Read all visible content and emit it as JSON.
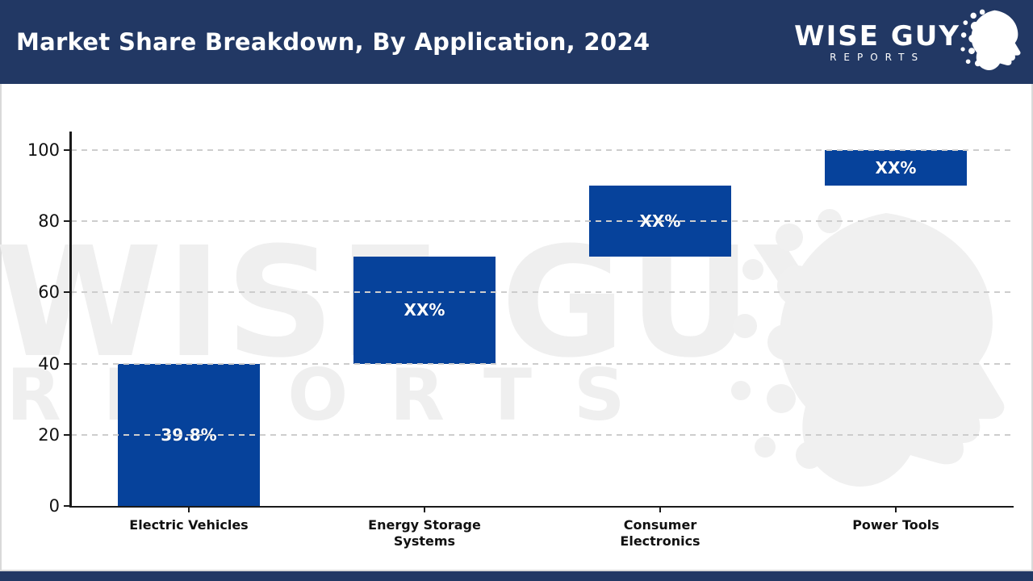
{
  "header": {
    "title": "Market Share Breakdown, By Application, 2024"
  },
  "logo": {
    "line1": "WISE GUY",
    "line2": "REPORTS",
    "head_icon": "dotted-head-profile"
  },
  "watermark": {
    "line1": "WISE GUY",
    "line2": "REPORTS",
    "head_icon": "dotted-head-profile"
  },
  "footer": {
    "type": "accent-strip"
  },
  "colors": {
    "header_bg": "#223864",
    "footer_bg": "#223864",
    "bar": "#06429b",
    "bar_label": "#ffffff",
    "grid": "#cdcdcd",
    "axis": "#1a1a1a",
    "watermark": "#efefef",
    "panel_border": "#d9d9d9"
  },
  "chart_data": {
    "type": "bar",
    "subtype": "waterfall",
    "title": "Market Share Breakdown, By Application, 2024",
    "xlabel": "",
    "ylabel": "",
    "categories": [
      "Electric Vehicles",
      "Energy Storage Systems",
      "Consumer Electronics",
      "Power Tools"
    ],
    "category_lines": [
      [
        "Electric Vehicles"
      ],
      [
        "Energy Storage",
        "Systems"
      ],
      [
        "Consumer",
        "Electronics"
      ],
      [
        "Power Tools"
      ]
    ],
    "series": [
      {
        "name": "Market Share (%)",
        "segments": [
          {
            "category": "Electric Vehicles",
            "start": 0,
            "end": 39.8,
            "label": "39.8%"
          },
          {
            "category": "Energy Storage Systems",
            "start": 40,
            "end": 70,
            "label": "XX%"
          },
          {
            "category": "Consumer Electronics",
            "start": 70,
            "end": 90,
            "label": "XX%"
          },
          {
            "category": "Power Tools",
            "start": 90,
            "end": 100,
            "label": "XX%"
          }
        ]
      }
    ],
    "ylim": [
      0,
      100
    ],
    "yticks": [
      0,
      20,
      40,
      60,
      80,
      100
    ],
    "grid": "horizontal-dashed",
    "legend": "none"
  }
}
